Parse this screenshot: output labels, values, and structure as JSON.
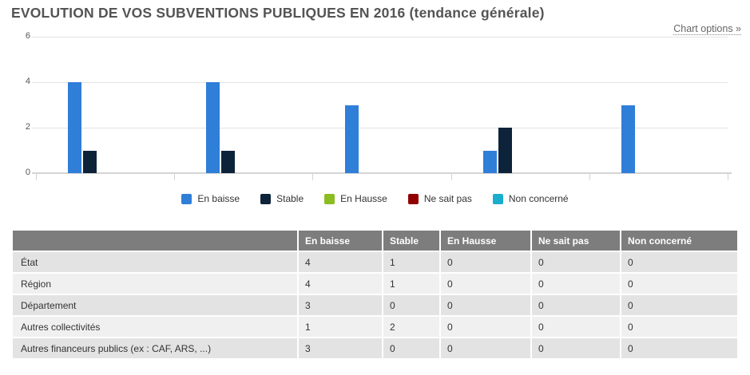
{
  "header": {
    "title": "EVOLUTION DE VOS SUBVENTIONS PUBLIQUES EN 2016 (tendance générale)",
    "chart_options_label": "Chart options »"
  },
  "chart_data": {
    "type": "bar",
    "categories": [
      "État",
      "Région",
      "Département",
      "Autres collectivités",
      "Autres financeurs publics (ex : CAF, ARS, ...)"
    ],
    "series": [
      {
        "name": "En baisse",
        "color": "#2f7ed8",
        "values": [
          4,
          4,
          3,
          1,
          3
        ]
      },
      {
        "name": "Stable",
        "color": "#0d233a",
        "values": [
          1,
          1,
          0,
          2,
          0
        ]
      },
      {
        "name": "En Hausse",
        "color": "#8bbc21",
        "values": [
          0,
          0,
          0,
          0,
          0
        ]
      },
      {
        "name": "Ne sait pas",
        "color": "#910000",
        "values": [
          0,
          0,
          0,
          0,
          0
        ]
      },
      {
        "name": "Non concerné",
        "color": "#1aadce",
        "values": [
          0,
          0,
          0,
          0,
          0
        ]
      }
    ],
    "ylim": [
      0,
      6
    ],
    "yticks": [
      0,
      2,
      4,
      6
    ],
    "grid": true,
    "legend_position": "bottom",
    "xlabel": "",
    "ylabel": "",
    "x_tick_labels_visible": false
  },
  "table": {
    "columns": [
      "",
      "En baisse",
      "Stable",
      "En Hausse",
      "Ne sait pas",
      "Non concerné"
    ],
    "rows": [
      {
        "label": "État",
        "values": [
          "4",
          "1",
          "0",
          "0",
          "0"
        ]
      },
      {
        "label": "Région",
        "values": [
          "4",
          "1",
          "0",
          "0",
          "0"
        ]
      },
      {
        "label": "Département",
        "values": [
          "3",
          "0",
          "0",
          "0",
          "0"
        ]
      },
      {
        "label": "Autres collectivités",
        "values": [
          "1",
          "2",
          "0",
          "0",
          "0"
        ]
      },
      {
        "label": "Autres financeurs publics (ex : CAF, ARS, ...)",
        "values": [
          "3",
          "0",
          "0",
          "0",
          "0"
        ]
      }
    ]
  }
}
